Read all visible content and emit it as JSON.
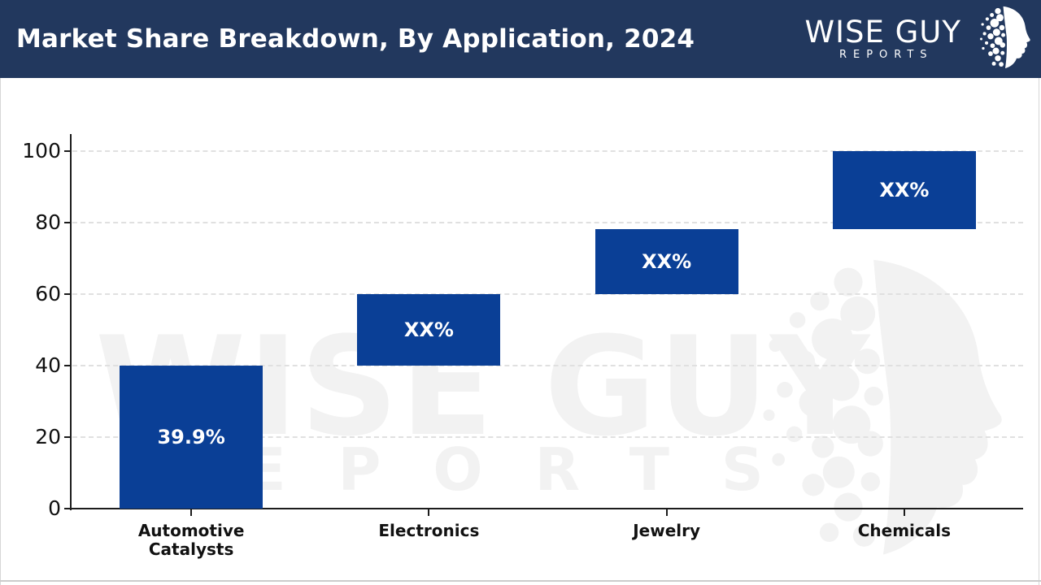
{
  "header": {
    "title": "Market Share Breakdown, By Application, 2024",
    "bg_color": "#22385e",
    "logo": {
      "line1": "WISE GUY",
      "line2": "REPORTS"
    }
  },
  "watermark": {
    "line1": "WISE GUY",
    "line2": "REPORTS",
    "color": "#f2f2f2"
  },
  "chart_data": {
    "type": "bar",
    "subtype": "waterfall-floating-bars",
    "title": "Market Share Breakdown, By Application, 2024",
    "categories": [
      "Automotive Catalysts",
      "Electronics",
      "Jewelry",
      "Chemicals"
    ],
    "segments": [
      {
        "category": "Automotive Catalysts",
        "start": 0,
        "end": 39.9,
        "label": "39.9%"
      },
      {
        "category": "Electronics",
        "start": 39.9,
        "end": 59.9,
        "label": "XX%"
      },
      {
        "category": "Jewelry",
        "start": 59.9,
        "end": 78.2,
        "label": "XX%"
      },
      {
        "category": "Chemicals",
        "start": 78.2,
        "end": 100,
        "label": "XX%"
      }
    ],
    "y_ticks": [
      0,
      20,
      40,
      60,
      80,
      100
    ],
    "ylim": [
      0,
      105
    ],
    "xlabel": "",
    "ylabel": "",
    "grid": "horizontal-dashed",
    "legend": "none",
    "bar_color": "#0a3f96",
    "bar_label_color": "#ffffff",
    "axis_color": "#1c1c1c",
    "grid_color": "#e0e0e0"
  }
}
